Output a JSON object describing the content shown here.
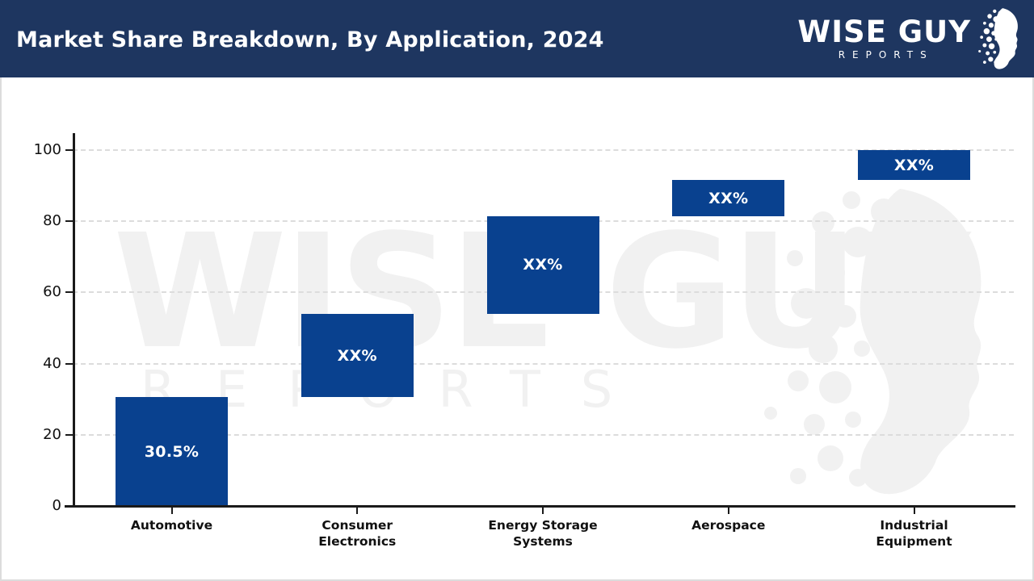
{
  "header": {
    "title": "Market Share Breakdown, By Application, 2024",
    "logo": {
      "wordmark": "WISE GUY",
      "subtext": "REPORTS"
    }
  },
  "watermark": {
    "big_text": "WISE GUY",
    "sub_text": "REPORTS"
  },
  "colors": {
    "header_bg": "#1e3660",
    "bar": "#09418f",
    "bar_label": "#ffffff",
    "gridline": "#dcdcdc",
    "axis": "#1a1a1a",
    "watermark": "#f1f1f1"
  },
  "chart_data": {
    "type": "bar",
    "subtype": "waterfall-floating-bars",
    "title": "Market Share Breakdown, By Application, 2024",
    "categories": [
      "Automotive",
      "Consumer\nElectronics",
      "Energy Storage\nSystems",
      "Aerospace",
      "Industrial\nEquipment"
    ],
    "segments": [
      {
        "category": "Automotive",
        "start": 0,
        "end": 30.5,
        "label": "30.5%"
      },
      {
        "category": "Consumer Electronics",
        "start": 30.5,
        "end": 54,
        "label": "XX%"
      },
      {
        "category": "Energy Storage Systems",
        "start": 54,
        "end": 81.5,
        "label": "XX%"
      },
      {
        "category": "Aerospace",
        "start": 81.5,
        "end": 91.5,
        "label": "XX%"
      },
      {
        "category": "Industrial Equipment",
        "start": 91.5,
        "end": 100,
        "label": "XX%"
      }
    ],
    "ylim": [
      0,
      100
    ],
    "yticks": [
      0,
      20,
      40,
      60,
      80,
      100
    ],
    "xlabel": "",
    "ylabel": "",
    "grid": "horizontal-dashed",
    "legend": "none"
  }
}
